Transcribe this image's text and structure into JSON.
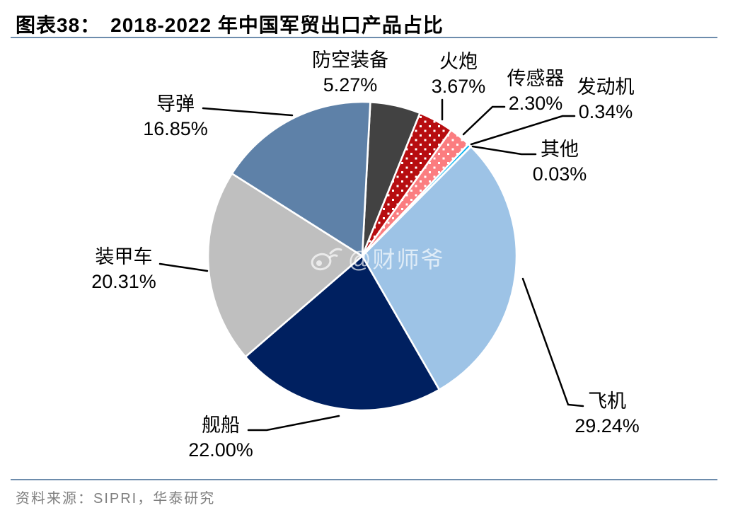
{
  "header": {
    "figure_label": "图表38：",
    "title": "2018-2022 年中国军贸出口产品占比"
  },
  "watermark": {
    "text": "@财师爷",
    "icon": "weibo-icon"
  },
  "footer": {
    "source": "资料来源：SIPRI，华泰研究"
  },
  "style": {
    "accent_rule_color": "#6D8CAC",
    "leader_line_color": "#000000",
    "source_text_color": "#7f7f7f",
    "slice_border_color": "#ffffff"
  },
  "chart_data": {
    "type": "pie",
    "title": "2018-2022 年中国军贸出口产品占比",
    "start_angle_deg": 3,
    "direction": "clockwise",
    "legend_position": "none",
    "slices": [
      {
        "id": "air_defense",
        "label": "防空装备",
        "value": 5.27,
        "pct_label": "5.27%",
        "color": "#424242",
        "pattern": "solid"
      },
      {
        "id": "artillery",
        "label": "火炮",
        "value": 3.67,
        "pct_label": "3.67%",
        "color": "#B70D10",
        "pattern": "white-dots"
      },
      {
        "id": "sensors",
        "label": "传感器",
        "value": 2.3,
        "pct_label": "2.30%",
        "color": "#FB7D80",
        "pattern": "white-dots"
      },
      {
        "id": "engines",
        "label": "发动机",
        "value": 0.34,
        "pct_label": "0.34%",
        "color": "#00B0F0",
        "pattern": "solid"
      },
      {
        "id": "other",
        "label": "其他",
        "value": 0.03,
        "pct_label": "0.03%",
        "color": "#1F4E79",
        "pattern": "solid"
      },
      {
        "id": "aircraft",
        "label": "飞机",
        "value": 29.24,
        "pct_label": "29.24%",
        "color": "#9DC3E6",
        "pattern": "solid"
      },
      {
        "id": "ships",
        "label": "舰船",
        "value": 22.0,
        "pct_label": "22.00%",
        "color": "#002060",
        "pattern": "solid"
      },
      {
        "id": "armored_vehicles",
        "label": "装甲车",
        "value": 20.31,
        "pct_label": "20.31%",
        "color": "#BFBFBF",
        "pattern": "solid"
      },
      {
        "id": "missiles",
        "label": "导弹",
        "value": 16.85,
        "pct_label": "16.85%",
        "color": "#5E81A8",
        "pattern": "solid"
      }
    ]
  }
}
